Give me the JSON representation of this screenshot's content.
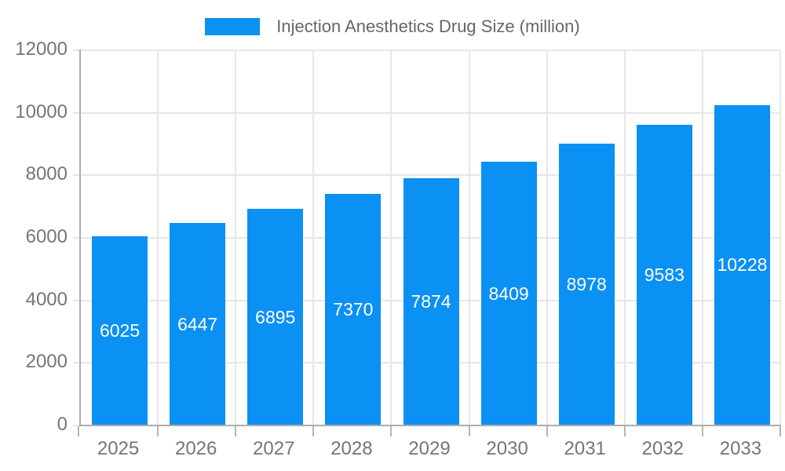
{
  "chart_data": {
    "type": "bar",
    "title": "",
    "categories": [
      "2025",
      "2026",
      "2027",
      "2028",
      "2029",
      "2030",
      "2031",
      "2032",
      "2033"
    ],
    "series": [
      {
        "name": "Injection Anesthetics Drug Size (million)",
        "values": [
          6025,
          6447,
          6895,
          7370,
          7874,
          8409,
          8978,
          9583,
          10228
        ]
      }
    ],
    "value_labels": [
      "6025",
      "6447",
      "6895",
      "7370",
      "7874",
      "8409",
      "8978",
      "9583",
      "10228"
    ],
    "xlabel": "",
    "ylabel": "",
    "ylim": [
      0,
      12000
    ],
    "ytick_interval": 2000,
    "yticks": [
      "0",
      "2000",
      "4000",
      "6000",
      "8000",
      "10000",
      "12000"
    ],
    "grid": true,
    "legend_position": "top",
    "value_label_position": "inside-center"
  },
  "legend": {
    "label": "Injection Anesthetics Drug Size (million)"
  },
  "colors": {
    "bar": "#0b90f3",
    "grid": "#e7e7e7",
    "axis": "#adadad",
    "tick": "#b5b5b5",
    "tick_label": "#757575",
    "legend_text": "#666666",
    "value_label": "#ffffff",
    "background": "#ffffff"
  }
}
